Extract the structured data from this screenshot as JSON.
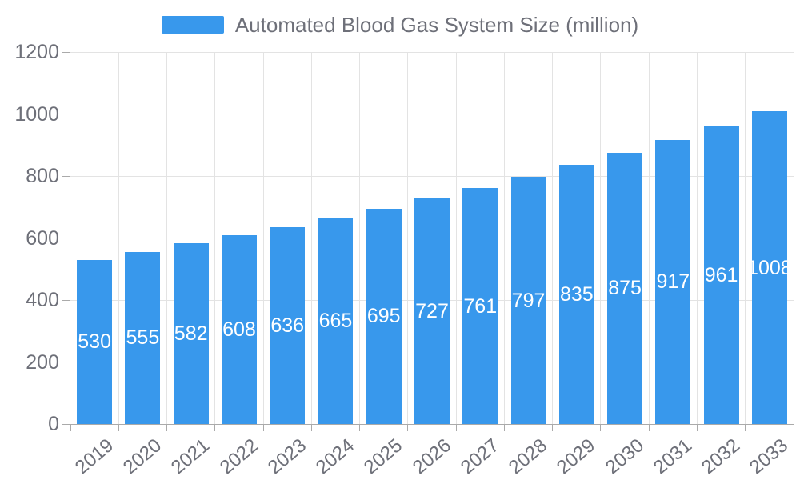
{
  "legend": {
    "label": "Automated Blood Gas System Size (million)"
  },
  "colors": {
    "bar": "#3898EC",
    "axis_line": "#AAAAAA",
    "grid_line": "#E3E3E3",
    "axis_text": "#6E7079",
    "bar_label": "#FFFFFF",
    "background": "#FFFFFF"
  },
  "chart_data": {
    "type": "bar",
    "title": "Automated Blood Gas System Size (million)",
    "series_name": "Automated Blood Gas System Size (million)",
    "categories": [
      "2019",
      "2020",
      "2021",
      "2022",
      "2023",
      "2024",
      "2025",
      "2026",
      "2027",
      "2028",
      "2029",
      "2030",
      "2031",
      "2032",
      "2033"
    ],
    "values": [
      530,
      555,
      582,
      608,
      636,
      665,
      695,
      727,
      761,
      797,
      835,
      875,
      917,
      961,
      1008
    ],
    "xlabel": "",
    "ylabel": "",
    "ylim": [
      0,
      1200
    ],
    "yticks": [
      0,
      200,
      400,
      600,
      800,
      1000,
      1200
    ],
    "grid": true,
    "legend_position": "top-center",
    "x_label_rotation_deg": 40,
    "bar_labels": "inside-center-white"
  }
}
